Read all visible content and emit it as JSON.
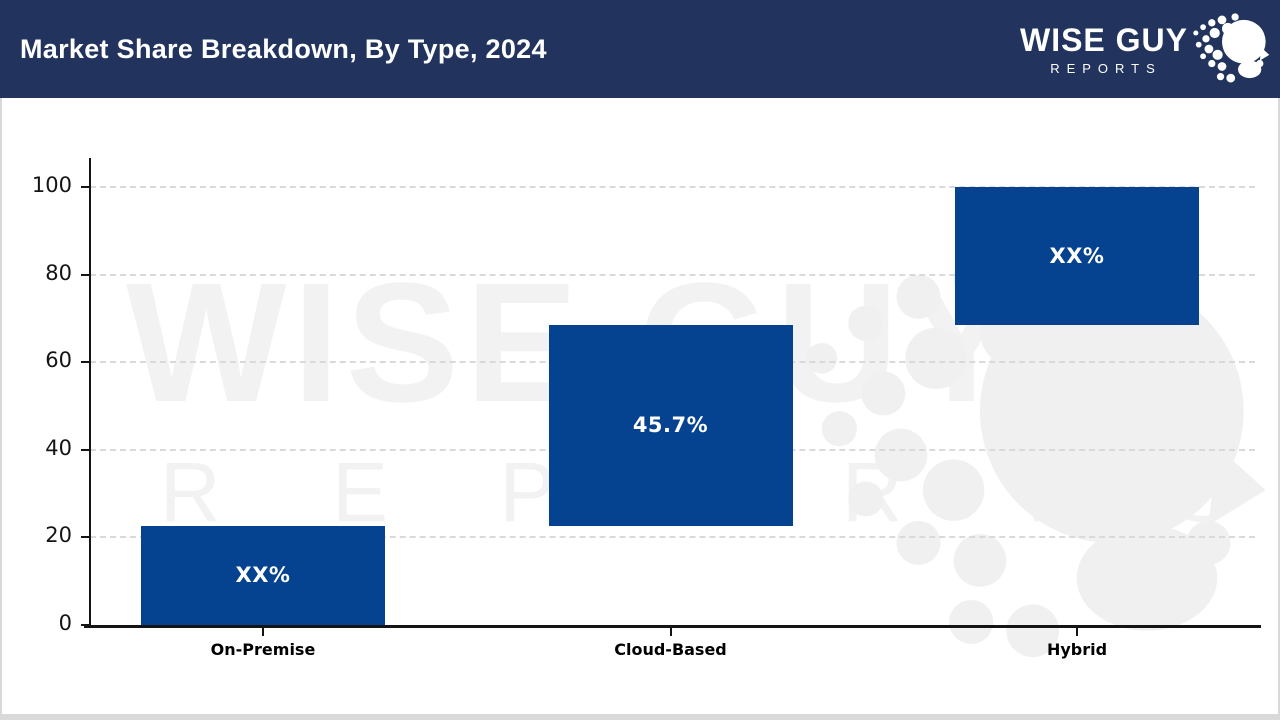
{
  "header": {
    "title": "Market Share Breakdown, By Type, 2024",
    "logo": {
      "wordmark": "WISE GUY",
      "subtext": "REPORTS"
    }
  },
  "watermark": {
    "line1": "WISE GUY",
    "line2": "R E P O R T S"
  },
  "chart_data": {
    "type": "bar",
    "variant": "floating-segment bars (waterfall-style share breakdown)",
    "title": "Market Share Breakdown, By Type, 2024",
    "categories": [
      "On-Premise",
      "Cloud-Based",
      "Hybrid"
    ],
    "bars": [
      {
        "category": "On-Premise",
        "start": 0,
        "end": 22.7,
        "size": 22.7,
        "label": "XX%"
      },
      {
        "category": "Cloud-Based",
        "start": 22.7,
        "end": 68.4,
        "size": 45.7,
        "label": "45.7%"
      },
      {
        "category": "Hybrid",
        "start": 68.4,
        "end": 100,
        "size": 31.6,
        "label": "XX%"
      }
    ],
    "xlabel": "",
    "ylabel": "",
    "ylim": [
      0,
      100
    ],
    "yticks": [
      0,
      20,
      40,
      60,
      80,
      100
    ],
    "grid": "horizontal dashed",
    "legend": "none",
    "bar_color": "#05428f",
    "bar_label_color": "#ffffff"
  },
  "colors": {
    "header_bg": "#22345e",
    "bar": "#05428f",
    "grid": "#d9d9d9",
    "axis": "#141414",
    "watermark": "#f2f2f2",
    "page_border": "#d9d9d9"
  }
}
